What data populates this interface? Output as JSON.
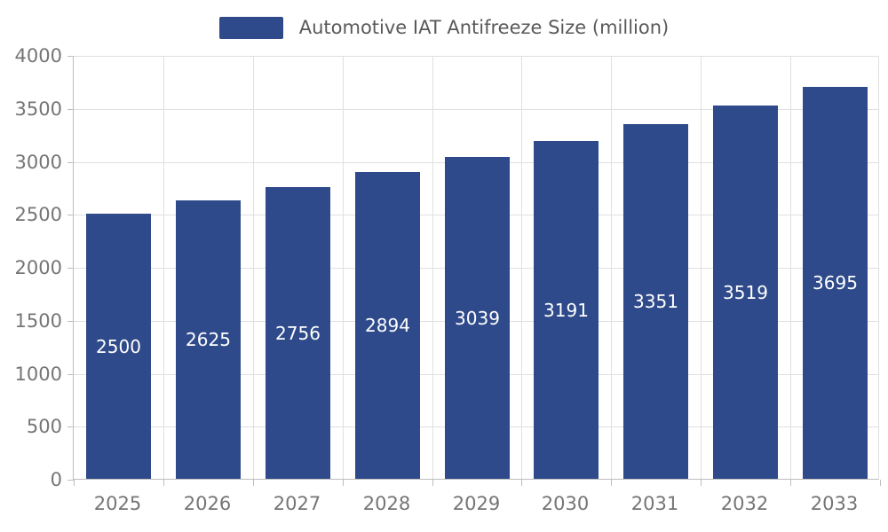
{
  "chart_data": {
    "type": "bar",
    "title": "Automotive IAT Antifreeze Size (million)",
    "categories": [
      "2025",
      "2026",
      "2027",
      "2028",
      "2029",
      "2030",
      "2031",
      "2032",
      "2033"
    ],
    "values": [
      2500,
      2625,
      2756,
      2894,
      3039,
      3191,
      3351,
      3519,
      3695
    ],
    "xlabel": "",
    "ylabel": "",
    "ylim": [
      0,
      4000
    ],
    "ytick_step": 500,
    "grid": true,
    "legend_position": "top-center",
    "colors": {
      "bar": "#2f4a8a",
      "bar_label": "#ffffff",
      "axis_text": "#757575",
      "legend_text": "#595959",
      "gridline": "#e0e0e0"
    }
  }
}
